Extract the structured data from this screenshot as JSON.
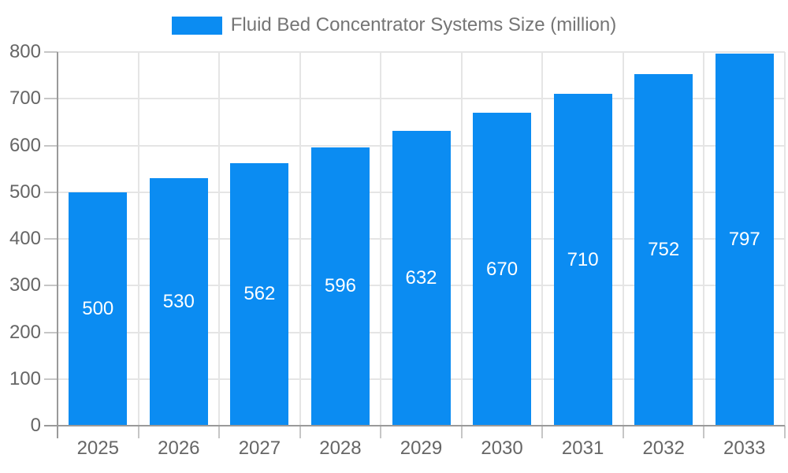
{
  "chart_data": {
    "type": "bar",
    "title": "Fluid Bed Concentrator Systems Size (million)",
    "legend_position": "top",
    "categories": [
      "2025",
      "2026",
      "2027",
      "2028",
      "2029",
      "2030",
      "2031",
      "2032",
      "2033"
    ],
    "values": [
      500,
      530,
      562,
      596,
      632,
      670,
      710,
      752,
      797
    ],
    "xlabel": "",
    "ylabel": "",
    "ylim": [
      0,
      800
    ],
    "yticks": [
      0,
      100,
      200,
      300,
      400,
      500,
      600,
      700,
      800
    ],
    "grid": true,
    "colors": {
      "bar": "#0b8cf2",
      "value_label": "#ffffff",
      "tick_label": "#666666",
      "legend_text": "#757575",
      "gridline": "#e5e5e5",
      "axis_line": "#9a9a9a",
      "tick_mark": "#c6c6c6"
    }
  }
}
